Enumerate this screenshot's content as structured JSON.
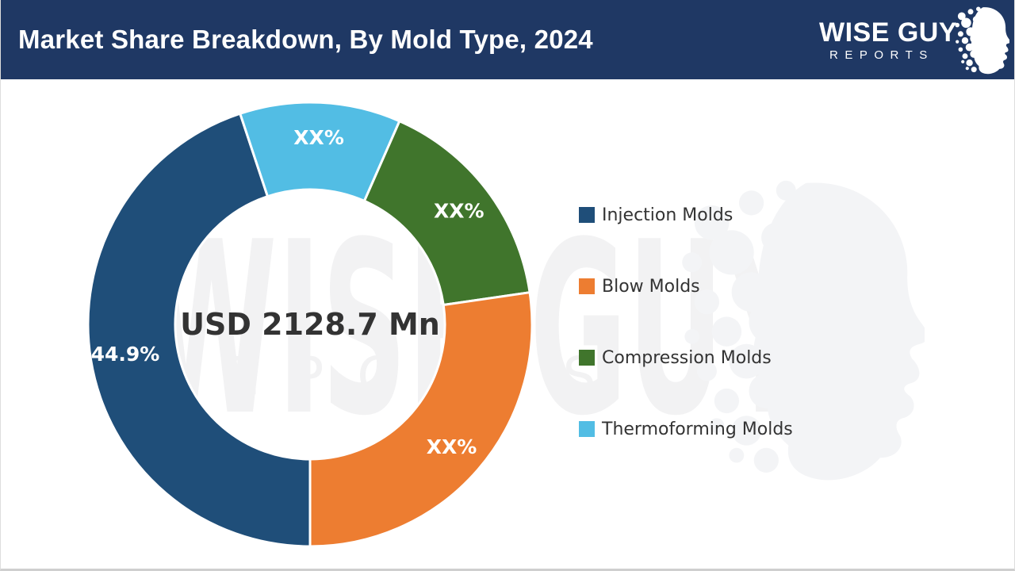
{
  "header": {
    "title": "Market Share Breakdown, By Mold Type, 2024",
    "bg_color": "#1F3864",
    "logo": {
      "line1": "WISE GUY",
      "line2": "REPORTS"
    }
  },
  "watermark": {
    "line1": "WISE GUY",
    "line2": "REPORTS"
  },
  "chart_data": {
    "type": "pie",
    "title": "Market Share Breakdown, By Mold Type, 2024",
    "donut": true,
    "center_label": "USD 2128.7 Mn",
    "legend_position": "right",
    "start_angle_deg_cw_from_top": 180,
    "draw_order": [
      0,
      3,
      2,
      1
    ],
    "slices": [
      {
        "name": "Injection Molds",
        "value_pct": 44.9,
        "display_label": "44.9%",
        "color": "#1F4E79"
      },
      {
        "name": "Blow Molds",
        "value_pct": 27.3,
        "display_label": "XX%",
        "color": "#ED7D31"
      },
      {
        "name": "Compression Molds",
        "value_pct": 16.1,
        "display_label": "XX%",
        "color": "#40752C"
      },
      {
        "name": "Thermoforming Molds",
        "value_pct": 11.7,
        "display_label": "XX%",
        "color": "#52BDE4"
      }
    ]
  }
}
